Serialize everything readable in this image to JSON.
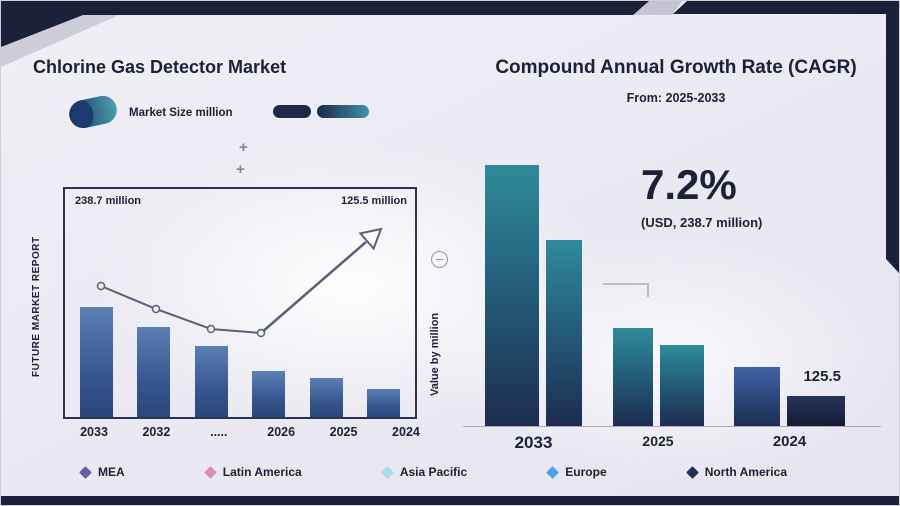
{
  "page": {
    "left_title": "Chlorine Gas Detector Market",
    "right_title": "Compound Annual Growth Rate (CAGR)",
    "right_subtitle": "From: 2025-2033"
  },
  "market_size_legend": {
    "label": "Market Size million"
  },
  "left_chart": {
    "watermark": "FUTURE MARKET REPORT"
  },
  "right_chart": {
    "ylabel": "Value by million"
  },
  "decor": {
    "plus": "+"
  },
  "legend": {
    "items": [
      {
        "label": "MEA",
        "color": "#6a5ba8"
      },
      {
        "label": "Latin America",
        "color": "#d78fb8"
      },
      {
        "label": "Asia Pacific",
        "color": "#a8dcea"
      },
      {
        "label": "Europe",
        "color": "#4aa3dd"
      },
      {
        "label": "North America",
        "color": "#252f56"
      }
    ]
  },
  "chart_data": [
    {
      "type": "bar",
      "title": "Chlorine Gas Detector Market - Market Size million",
      "categories": [
        "2033",
        "2032",
        ".....",
        "2026",
        "2025",
        "2024"
      ],
      "values": [
        238.7,
        195,
        155,
        100,
        85,
        60
      ],
      "annotations": [
        "238.7 million",
        "125.5 million"
      ],
      "ylim": [
        0,
        250
      ],
      "grid": false,
      "legend_position": "none",
      "overlay": "declining marker line ending in an upward outlined arrow"
    },
    {
      "type": "bar",
      "title": "Compound Annual Growth Rate (CAGR) From: 2025-2033",
      "categories": [
        "2033",
        "2025",
        "2024"
      ],
      "series": [
        {
          "name": "series-1",
          "values": [
            238.7,
            90,
            55
          ]
        },
        {
          "name": "series-2",
          "values": [
            170,
            75,
            28
          ]
        }
      ],
      "ylabel": "Value by million",
      "annotations": [
        "7.2%",
        "(USD, 238.7 million)",
        "125.5"
      ],
      "ylim": [
        0,
        250
      ],
      "grid": false,
      "legend_position": "bottom"
    }
  ]
}
